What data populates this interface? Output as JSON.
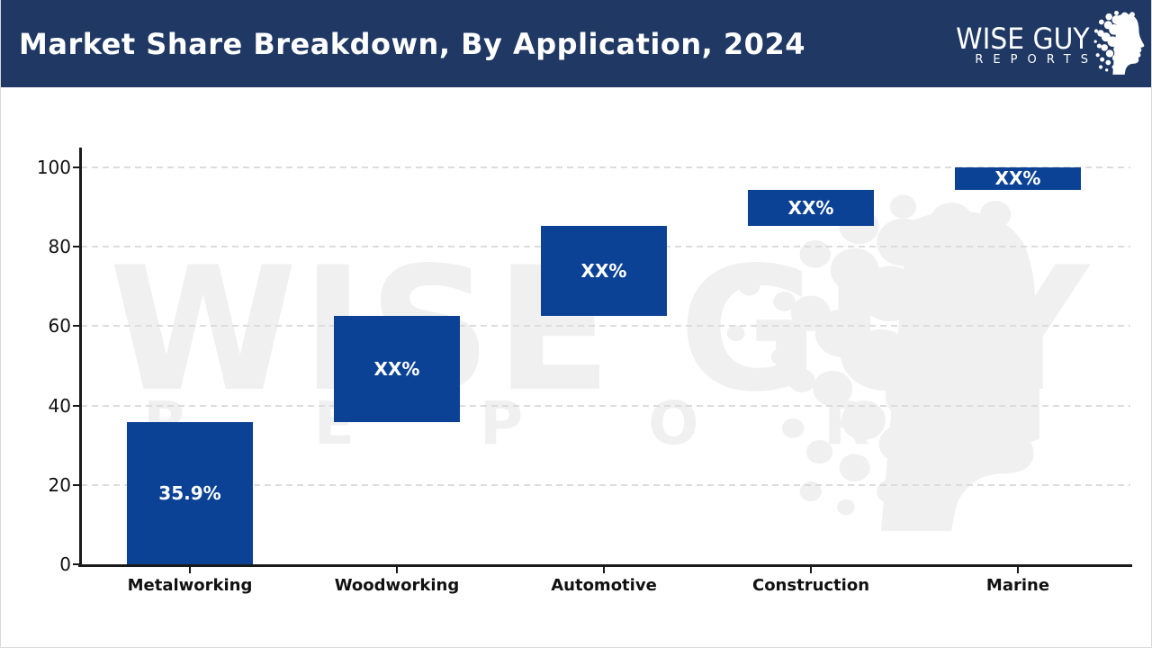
{
  "header": {
    "title": "Market Share Breakdown, By Application, 2024",
    "logo": {
      "line1": "WISE GUY",
      "line2": "REPORTS"
    }
  },
  "watermark": {
    "line1": "WISE GUY",
    "line2": "R E P O R T S"
  },
  "colors": {
    "header_bg": "#1f3864",
    "bar": "#0b4295",
    "axis": "#1a1a1a",
    "gridline": "#dcdcdc",
    "watermark": "#f0f0f0"
  },
  "chart_data": {
    "type": "bar",
    "subtype": "waterfall",
    "title": "Market Share Breakdown, By Application, 2024",
    "categories": [
      "Metalworking",
      "Woodworking",
      "Automotive",
      "Construction",
      "Marine"
    ],
    "segments": [
      {
        "category": "Metalworking",
        "start": 0,
        "end": 35.9,
        "label": "35.9%"
      },
      {
        "category": "Woodworking",
        "start": 35.9,
        "end": 62.6,
        "label": "XX%"
      },
      {
        "category": "Automotive",
        "start": 62.6,
        "end": 85.3,
        "label": "XX%"
      },
      {
        "category": "Construction",
        "start": 85.3,
        "end": 94.4,
        "label": "XX%"
      },
      {
        "category": "Marine",
        "start": 94.4,
        "end": 100,
        "label": "XX%"
      }
    ],
    "xlabel": "",
    "ylabel": "",
    "y_ticks": [
      0,
      20,
      40,
      60,
      80,
      100
    ],
    "ylim": [
      0,
      105
    ],
    "grid": "horizontal-dashed",
    "legend": "none",
    "bar_value_unit": "%"
  }
}
